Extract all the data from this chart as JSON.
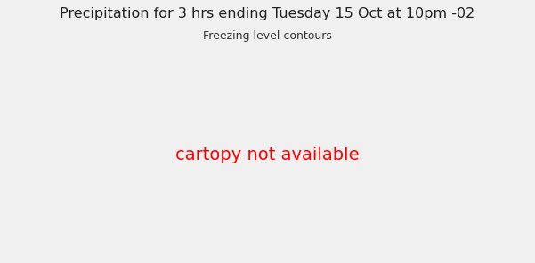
{
  "title": "Precipitation for 3 hrs ending Tuesday 15 Oct at 10pm -02",
  "subtitle": "Freezing level contours",
  "title_fontsize": 11.5,
  "subtitle_fontsize": 9,
  "title_color": "#222222",
  "subtitle_color": "#333333",
  "header_bg": "#f0f0f0",
  "ocean_color": "#c8dff0",
  "land_color": "#aaaaaa",
  "coast_color": "#555555",
  "green_color": "#4aaa30",
  "contour_color": "#dd0000",
  "label_color": "#dd0000",
  "fig_width": 6.01,
  "fig_height": 2.96,
  "dpi": 100,
  "extent": [
    -80,
    20,
    55,
    84
  ],
  "contour_label_fontsize": 6.5
}
